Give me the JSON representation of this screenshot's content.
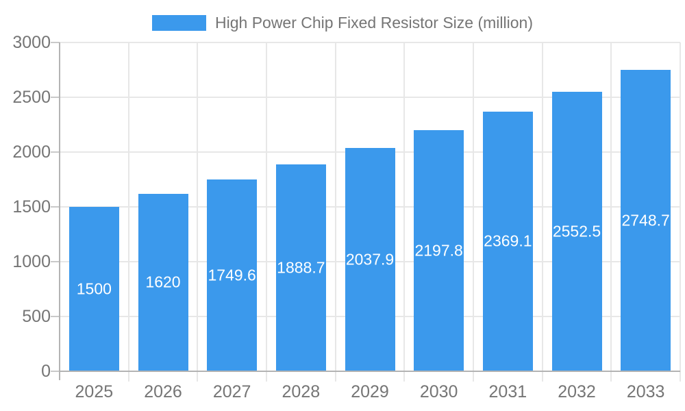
{
  "legend": {
    "position": "top",
    "items": [
      {
        "label": "High Power Chip Fixed Resistor Size (million)",
        "color": "#3B99EC"
      }
    ]
  },
  "chart_data": {
    "type": "bar",
    "title": "High Power Chip Fixed Resistor Size (million)",
    "xlabel": "",
    "ylabel": "",
    "categories": [
      "2025",
      "2026",
      "2027",
      "2028",
      "2029",
      "2030",
      "2031",
      "2032",
      "2033"
    ],
    "series": [
      {
        "name": "High Power Chip Fixed Resistor Size (million)",
        "color": "#3B99EC",
        "values": [
          1500,
          1620,
          1749.6,
          1888.7,
          2037.9,
          2197.8,
          2369.1,
          2552.5,
          2748.7
        ],
        "labels": [
          "1500",
          "1620",
          "1749.6",
          "1888.7",
          "2037.9",
          "2197.8",
          "2369.1",
          "2552.5",
          "2748.7"
        ]
      }
    ],
    "ylim": [
      0,
      3000
    ],
    "yticks": [
      0,
      500,
      1000,
      1500,
      2000,
      2500,
      3000
    ],
    "grid": true,
    "legend_position": "top-center",
    "value_label_position": "inside-center",
    "colors": {
      "bar": "#3B99EC",
      "value_label": "#ffffff",
      "axis_text": "#757575",
      "gridline": "#e7e7e7",
      "axis_line": "#b3b3b3",
      "background": "#ffffff"
    }
  }
}
